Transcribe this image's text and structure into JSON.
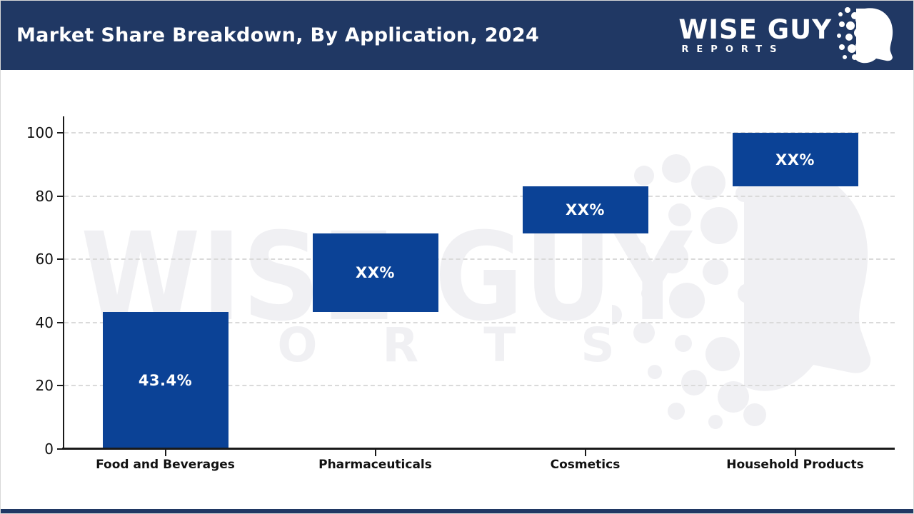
{
  "header": {
    "title": "Market Share Breakdown, By Application, 2024",
    "logo_line1": "WISE GUY",
    "logo_line2": "REPORTS",
    "background_color": "#203864"
  },
  "watermark": {
    "line1": "WISE GUY",
    "line2": "REPORTS"
  },
  "chart_data": {
    "type": "bar",
    "subtype": "waterfall",
    "title": "Market Share Breakdown, By Application, 2024",
    "categories": [
      "Food and Beverages",
      "Pharmaceuticals",
      "Cosmetics",
      "Household Products"
    ],
    "segments": [
      {
        "category": "Food and Beverages",
        "start": 0,
        "end": 43.4,
        "label": "43.4%"
      },
      {
        "category": "Pharmaceuticals",
        "start": 43.4,
        "end": 68.2,
        "label": "XX%"
      },
      {
        "category": "Cosmetics",
        "start": 68.2,
        "end": 83,
        "label": "XX%"
      },
      {
        "category": "Household Products",
        "start": 83,
        "end": 100,
        "label": "XX%"
      }
    ],
    "ylim": [
      0,
      100
    ],
    "yticks": [
      0,
      20,
      40,
      60,
      80,
      100
    ],
    "grid": "horizontal-dashed",
    "legend": "none",
    "bar_color": "#0b4296",
    "bar_label_color": "#ffffff",
    "axis_color": "#1a1a1a"
  }
}
